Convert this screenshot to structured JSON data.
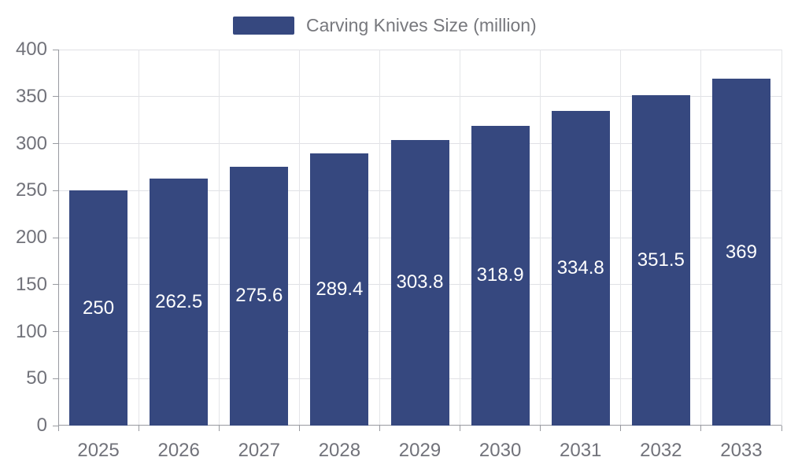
{
  "legend": {
    "label": "Carving Knives Size (million)"
  },
  "chart_data": {
    "type": "bar",
    "title": "Carving Knives Size (million)",
    "categories": [
      "2025",
      "2026",
      "2027",
      "2028",
      "2029",
      "2030",
      "2031",
      "2032",
      "2033"
    ],
    "values": [
      250,
      262.5,
      275.6,
      289.4,
      303.8,
      318.9,
      334.8,
      351.5,
      369
    ],
    "value_labels": [
      "250",
      "262.5",
      "275.6",
      "289.4",
      "303.8",
      "318.9",
      "334.8",
      "351.5",
      "369"
    ],
    "xlabel": "",
    "ylabel": "",
    "ylim": [
      0,
      400
    ],
    "yticks": [
      0,
      50,
      100,
      150,
      200,
      250,
      300,
      350,
      400
    ],
    "ytick_labels": [
      "0",
      "50",
      "100",
      "150",
      "200",
      "250",
      "300",
      "350",
      "400"
    ],
    "grid": true,
    "legend_position": "top",
    "bar_color": "#36487f",
    "bar_label_color": "#ffffff",
    "axis_text_color": "#71727a",
    "axis_line_color": "#989aa0",
    "gridline_color": "#e0e1e5"
  }
}
